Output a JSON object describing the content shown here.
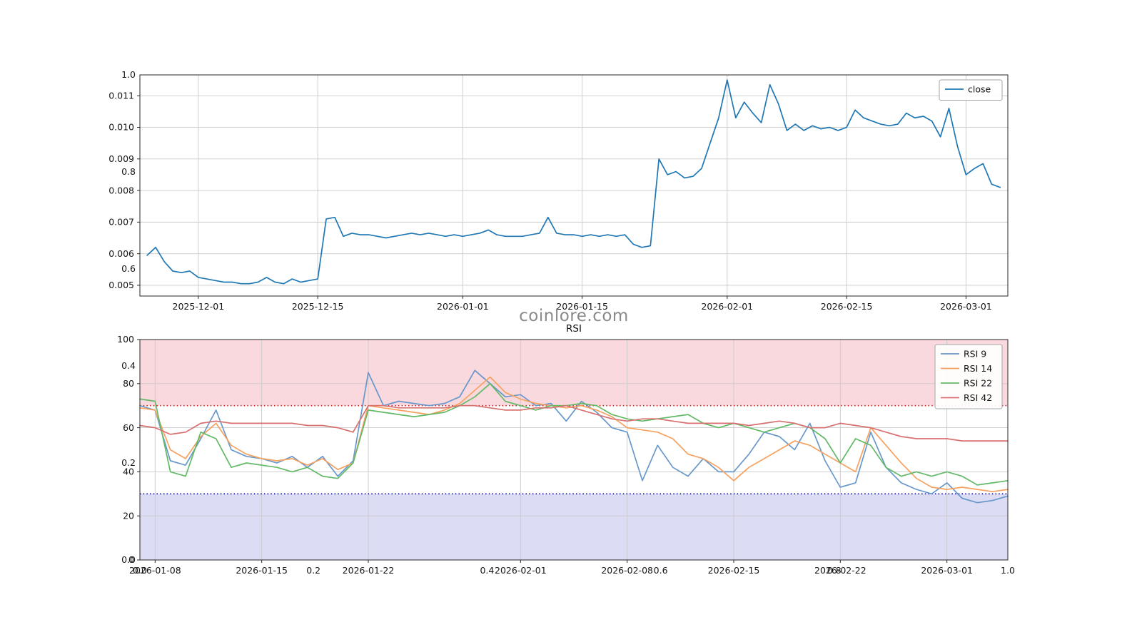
{
  "watermark": "coinlore.com",
  "colors": {
    "grid": "#c9c9c9",
    "spine": "#262626",
    "tick_text": "#151515",
    "legend_border": "#a6a6a6",
    "watermark_gray": "#8a8a8a"
  },
  "hidden_axis": {
    "yticks": [
      "1.0",
      "0.8",
      "0.6",
      "0.4",
      "0.2",
      "0.0"
    ],
    "xticks": [
      "0.0",
      "0.2",
      "0.4",
      "0.6",
      "0.8",
      "1.0"
    ]
  },
  "chart_data": [
    {
      "type": "line",
      "title": "",
      "xlabel": "",
      "ylabel": "",
      "grid": true,
      "legend_position": "upper right",
      "x_dates": {
        "start": "2025-11-25",
        "end": "2026-03-05",
        "freq": "daily"
      },
      "xlim": [
        -0.85,
        100.9
      ],
      "ylim": [
        0.00466,
        0.01166
      ],
      "yticks": [
        {
          "v": 0.005,
          "label": "0.005"
        },
        {
          "v": 0.006,
          "label": "0.006"
        },
        {
          "v": 0.007,
          "label": "0.007"
        },
        {
          "v": 0.008,
          "label": "0.008"
        },
        {
          "v": 0.009,
          "label": "0.009"
        },
        {
          "v": 0.01,
          "label": "0.010"
        },
        {
          "v": 0.011,
          "label": "0.011"
        }
      ],
      "xticks": [
        {
          "i": 6,
          "label": "2025-12-01"
        },
        {
          "i": 20,
          "label": "2025-12-15"
        },
        {
          "i": 37,
          "label": "2026-01-01"
        },
        {
          "i": 51,
          "label": "2026-01-15"
        },
        {
          "i": 68,
          "label": "2026-02-01"
        },
        {
          "i": 82,
          "label": "2026-02-15"
        },
        {
          "i": 96,
          "label": "2026-03-01"
        }
      ],
      "series": [
        {
          "id": "close",
          "name": "close",
          "color": "#1f77b4",
          "values": [
            0.00595,
            0.0062,
            0.00575,
            0.00545,
            0.0054,
            0.00545,
            0.00525,
            0.0052,
            0.00515,
            0.0051,
            0.0051,
            0.00505,
            0.00505,
            0.0051,
            0.00525,
            0.0051,
            0.00505,
            0.0052,
            0.0051,
            0.00515,
            0.0052,
            0.0071,
            0.00715,
            0.00655,
            0.00665,
            0.0066,
            0.0066,
            0.00655,
            0.0065,
            0.00655,
            0.0066,
            0.00665,
            0.0066,
            0.00665,
            0.0066,
            0.00655,
            0.0066,
            0.00655,
            0.0066,
            0.00665,
            0.00675,
            0.0066,
            0.00655,
            0.00655,
            0.00655,
            0.0066,
            0.00665,
            0.00715,
            0.00665,
            0.0066,
            0.0066,
            0.00655,
            0.0066,
            0.00655,
            0.0066,
            0.00655,
            0.0066,
            0.0063,
            0.0062,
            0.00625,
            0.009,
            0.0085,
            0.0086,
            0.0084,
            0.00845,
            0.0087,
            0.0095,
            0.0103,
            0.0115,
            0.0103,
            0.0108,
            0.01045,
            0.01015,
            0.01135,
            0.01075,
            0.0099,
            0.0101,
            0.0099,
            0.01005,
            0.00995,
            0.01,
            0.0099,
            0.01,
            0.01055,
            0.0103,
            0.0102,
            0.0101,
            0.01005,
            0.0101,
            0.01045,
            0.0103,
            0.01035,
            0.0102,
            0.0097,
            0.0106,
            0.0094,
            0.0085,
            0.0087,
            0.00885,
            0.0082,
            0.0081
          ]
        }
      ]
    },
    {
      "type": "line",
      "title": "RSI",
      "xlabel": "",
      "ylabel": "",
      "grid": true,
      "legend_position": "upper right",
      "x_dates": {
        "start": "2026-01-07",
        "end": "2026-03-05",
        "freq": "daily"
      },
      "xlim": [
        0,
        57
      ],
      "ylim": [
        0,
        100
      ],
      "yticks": [
        {
          "v": 0,
          "label": "0"
        },
        {
          "v": 20,
          "label": "20"
        },
        {
          "v": 40,
          "label": "40"
        },
        {
          "v": 60,
          "label": "60"
        },
        {
          "v": 80,
          "label": "80"
        },
        {
          "v": 100,
          "label": "100"
        }
      ],
      "xticks": [
        {
          "i": 1,
          "label": "2026-01-08"
        },
        {
          "i": 8,
          "label": "2026-01-15"
        },
        {
          "i": 15,
          "label": "2026-01-22"
        },
        {
          "i": 25,
          "label": "2026-02-01"
        },
        {
          "i": 32,
          "label": "2026-02-08"
        },
        {
          "i": 39,
          "label": "2026-02-15"
        },
        {
          "i": 46,
          "label": "2026-02-22"
        },
        {
          "i": 53,
          "label": "2026-03-01"
        }
      ],
      "bands": [
        {
          "from": 70,
          "to": 100,
          "color": "#f9d9de",
          "meaning": "overbought"
        },
        {
          "from": 0,
          "to": 30,
          "color": "#dddcf5",
          "meaning": "oversold"
        }
      ],
      "hlines": [
        {
          "y": 70,
          "color": "#cc2020",
          "style": "dotted"
        },
        {
          "y": 30,
          "color": "#000099",
          "style": "dotted"
        }
      ],
      "series": [
        {
          "id": "rsi-9",
          "name": "RSI 9",
          "color": "#6898cb",
          "values": [
            70,
            68,
            45,
            43,
            55,
            68,
            50,
            47,
            46,
            44,
            47,
            42,
            47,
            38,
            45,
            85,
            70,
            72,
            71,
            70,
            71,
            74,
            86,
            80,
            74,
            75,
            70,
            71,
            63,
            72,
            67,
            60,
            58,
            36,
            52,
            42,
            38,
            46,
            40,
            40,
            48,
            58,
            56,
            50,
            62,
            45,
            33,
            35,
            58,
            42,
            35,
            32,
            30,
            35,
            28,
            26,
            27,
            29
          ]
        },
        {
          "id": "rsi-14",
          "name": "RSI 14",
          "color": "#f8a15f",
          "values": [
            69,
            68,
            50,
            46,
            56,
            62,
            52,
            48,
            46,
            45,
            46,
            43,
            46,
            41,
            44,
            70,
            69,
            68,
            67,
            66,
            68,
            71,
            77,
            83,
            76,
            73,
            71,
            70,
            69,
            70,
            68,
            65,
            60,
            59,
            58,
            55,
            48,
            46,
            42,
            36,
            42,
            46,
            50,
            54,
            52,
            48,
            44,
            40,
            60,
            52,
            44,
            37,
            33,
            32,
            33,
            32,
            31,
            32
          ]
        },
        {
          "id": "rsi-22",
          "name": "RSI 22",
          "color": "#62ba66",
          "values": [
            73,
            72,
            40,
            38,
            58,
            55,
            42,
            44,
            43,
            42,
            40,
            42,
            38,
            37,
            44,
            68,
            67,
            66,
            65,
            66,
            67,
            70,
            74,
            80,
            72,
            70,
            68,
            70,
            70,
            71,
            70,
            66,
            64,
            63,
            64,
            65,
            66,
            62,
            60,
            62,
            60,
            58,
            60,
            62,
            60,
            55,
            44,
            55,
            52,
            42,
            38,
            40,
            38,
            40,
            38,
            34,
            35,
            36
          ]
        },
        {
          "id": "rsi-42",
          "name": "RSI 42",
          "color": "#d87070",
          "values": [
            61,
            60,
            57,
            58,
            62,
            63,
            62,
            62,
            62,
            62,
            62,
            61,
            61,
            60,
            58,
            70,
            70,
            69,
            69,
            69,
            69,
            70,
            70,
            69,
            68,
            68,
            69,
            69,
            70,
            68,
            66,
            64,
            63,
            64,
            64,
            63,
            62,
            62,
            62,
            62,
            61,
            62,
            63,
            62,
            60,
            60,
            62,
            61,
            60,
            58,
            56,
            55,
            55,
            55,
            54,
            54,
            54,
            54
          ]
        }
      ]
    }
  ]
}
